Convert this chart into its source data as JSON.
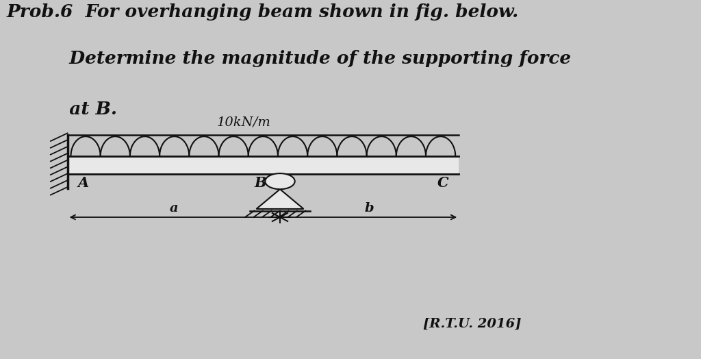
{
  "background_color": "#c8c8c8",
  "title_line1": "Prob.6  For overhanging beam shown in fig. below.",
  "title_line2": "          Determine the magnitude of the supporting force",
  "title_line3": "          at B.",
  "ref": "[R.T.U. 2016]",
  "label_A": "A",
  "label_B": "B",
  "label_C": "C",
  "label_load": "10kN/m",
  "label_a": "a",
  "label_b": "b",
  "text_color": "#111111",
  "font_size_title": 19,
  "font_size_labels": 13,
  "font_size_ref": 14
}
